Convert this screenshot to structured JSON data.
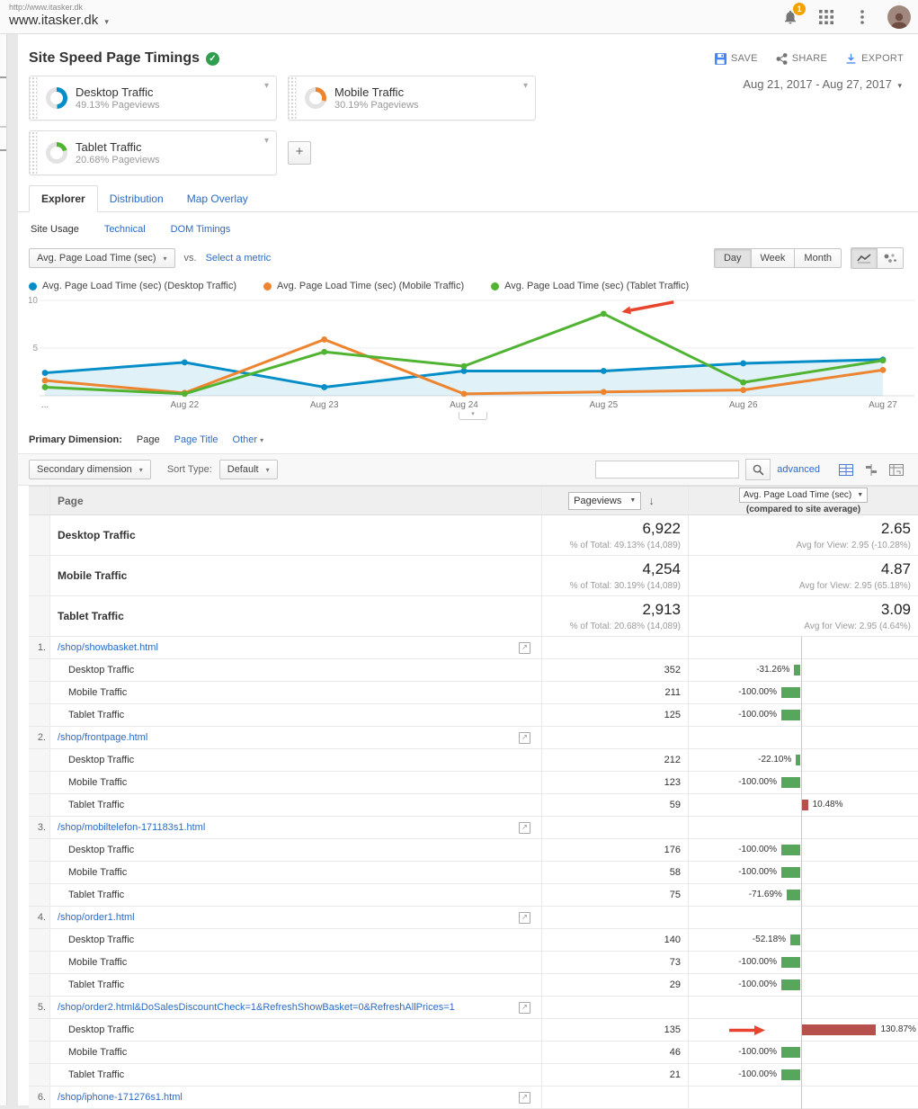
{
  "topbar": {
    "url_small": "http://www.itasker.dk",
    "account": "www.itasker.dk",
    "notification_count": "1"
  },
  "icons": {
    "caret_down": "▾",
    "select_arrow": "▼",
    "sort_desc": "↓",
    "add": "+",
    "check": "✓",
    "external_link": "↗",
    "bell": "notifications-bell",
    "apps_grid": "google-apps-grid",
    "kebab": "three-dot-menu",
    "search": "magnifier"
  },
  "colors": {
    "link_blue": "#2a6bc6",
    "bar_negative": "#58a55c",
    "bar_positive": "#b5504d",
    "annotation_red": "#e8442e",
    "accent_orange": "#f5a100"
  },
  "header": {
    "title": "Site Speed Page Timings",
    "save_label": "SAVE",
    "share_label": "SHARE",
    "export_label": "EXPORT",
    "date_range": "Aug 21, 2017 - Aug 27, 2017"
  },
  "segments": [
    {
      "name": "Desktop Traffic",
      "sub": "49.13% Pageviews",
      "color": "#058dc7",
      "pct": 49.13
    },
    {
      "name": "Mobile Traffic",
      "sub": "30.19% Pageviews",
      "color": "#ed8430",
      "pct": 30.19
    },
    {
      "name": "Tablet Traffic",
      "sub": "20.68% Pageviews",
      "color": "#50b432",
      "pct": 20.68
    }
  ],
  "tabs": [
    "Explorer",
    "Distribution",
    "Map Overlay"
  ],
  "subtabs": [
    "Site Usage",
    "Technical",
    "DOM Timings"
  ],
  "metric_bar": {
    "metric": "Avg. Page Load Time (sec)",
    "vs": "vs.",
    "select_metric": "Select a metric",
    "granularity": [
      "Day",
      "Week",
      "Month"
    ]
  },
  "chart_data": {
    "type": "line",
    "title": "",
    "x": [
      "Aug 21",
      "Aug 22",
      "Aug 23",
      "Aug 24",
      "Aug 25",
      "Aug 26",
      "Aug 27"
    ],
    "xtick_labels": [
      "...",
      "Aug 22",
      "Aug 23",
      "Aug 24",
      "Aug 25",
      "Aug 26",
      "Aug 27"
    ],
    "ylim": [
      0,
      10
    ],
    "yticks": [
      5,
      10
    ],
    "grid": true,
    "legend_position": "top",
    "series": [
      {
        "name": "Avg. Page Load Time (sec) (Desktop Traffic)",
        "color": "#058dc7",
        "area": true,
        "values": [
          2.4,
          3.5,
          0.9,
          2.6,
          2.6,
          3.4,
          3.8
        ]
      },
      {
        "name": "Avg. Page Load Time (sec) (Mobile Traffic)",
        "color": "#ed8430",
        "area": false,
        "values": [
          1.6,
          0.3,
          5.9,
          0.2,
          0.4,
          0.6,
          2.7
        ]
      },
      {
        "name": "Avg. Page Load Time (sec) (Tablet Traffic)",
        "color": "#50b432",
        "area": false,
        "values": [
          0.9,
          0.2,
          4.6,
          3.1,
          8.6,
          1.4,
          3.7
        ]
      }
    ],
    "annotation": {
      "type": "arrow",
      "color": "#e8442e",
      "points_to": "Tablet Traffic peak on Aug 25"
    }
  },
  "dimension_bar": {
    "label": "Primary Dimension:",
    "active": "Page",
    "links": [
      "Page Title",
      "Other"
    ]
  },
  "toolbar": {
    "secondary": "Secondary dimension",
    "sort_label": "Sort Type:",
    "sort_value": "Default",
    "search_value": "",
    "advanced": "advanced"
  },
  "table": {
    "col_page": "Page",
    "col_pageviews": "Pageviews",
    "col_metric": "Avg. Page Load Time (sec)",
    "col_metric_sub": "(compared to site average)",
    "summary": [
      {
        "label": "Desktop Traffic",
        "pageviews": "6,922",
        "pv_sub": "% of Total: 49.13% (14,089)",
        "metric": "2.65",
        "metric_sub": "Avg for View: 2.95 (-10.28%)"
      },
      {
        "label": "Mobile Traffic",
        "pageviews": "4,254",
        "pv_sub": "% of Total: 30.19% (14,089)",
        "metric": "4.87",
        "metric_sub": "Avg for View: 2.95 (65.18%)"
      },
      {
        "label": "Tablet Traffic",
        "pageviews": "2,913",
        "pv_sub": "% of Total: 20.68% (14,089)",
        "metric": "3.09",
        "metric_sub": "Avg for View: 2.95 (4.64%)"
      }
    ],
    "rows": [
      {
        "index": "1.",
        "url": "/shop/showbasket.html",
        "segments": [
          {
            "label": "Desktop Traffic",
            "pageviews": "352",
            "delta": -31.26,
            "delta_label": "-31.26%"
          },
          {
            "label": "Mobile Traffic",
            "pageviews": "211",
            "delta": -100,
            "delta_label": "-100.00%"
          },
          {
            "label": "Tablet Traffic",
            "pageviews": "125",
            "delta": -100,
            "delta_label": "-100.00%"
          }
        ]
      },
      {
        "index": "2.",
        "url": "/shop/frontpage.html",
        "segments": [
          {
            "label": "Desktop Traffic",
            "pageviews": "212",
            "delta": -22.1,
            "delta_label": "-22.10%"
          },
          {
            "label": "Mobile Traffic",
            "pageviews": "123",
            "delta": -100,
            "delta_label": "-100.00%"
          },
          {
            "label": "Tablet Traffic",
            "pageviews": "59",
            "delta": 10.48,
            "delta_label": "10.48%"
          }
        ]
      },
      {
        "index": "3.",
        "url": "/shop/mobiltelefon-171183s1.html",
        "segments": [
          {
            "label": "Desktop Traffic",
            "pageviews": "176",
            "delta": -100,
            "delta_label": "-100.00%"
          },
          {
            "label": "Mobile Traffic",
            "pageviews": "58",
            "delta": -100,
            "delta_label": "-100.00%"
          },
          {
            "label": "Tablet Traffic",
            "pageviews": "75",
            "delta": -71.69,
            "delta_label": "-71.69%"
          }
        ]
      },
      {
        "index": "4.",
        "url": "/shop/order1.html",
        "segments": [
          {
            "label": "Desktop Traffic",
            "pageviews": "140",
            "delta": -52.18,
            "delta_label": "-52.18%"
          },
          {
            "label": "Mobile Traffic",
            "pageviews": "73",
            "delta": -100,
            "delta_label": "-100.00%"
          },
          {
            "label": "Tablet Traffic",
            "pageviews": "29",
            "delta": -100,
            "delta_label": "-100.00%"
          }
        ]
      },
      {
        "index": "5.",
        "url": "/shop/order2.html&DoSalesDiscountCheck=1&RefreshShowBasket=0&RefreshAllPrices=1",
        "segments": [
          {
            "label": "Desktop Traffic",
            "pageviews": "135",
            "delta": 130.87,
            "delta_label": "130.87%",
            "arrow": true
          },
          {
            "label": "Mobile Traffic",
            "pageviews": "46",
            "delta": -100,
            "delta_label": "-100.00%"
          },
          {
            "label": "Tablet Traffic",
            "pageviews": "21",
            "delta": -100,
            "delta_label": "-100.00%"
          }
        ]
      },
      {
        "index": "6.",
        "url": "/shop/iphone-171276s1.html",
        "segments": []
      }
    ]
  }
}
